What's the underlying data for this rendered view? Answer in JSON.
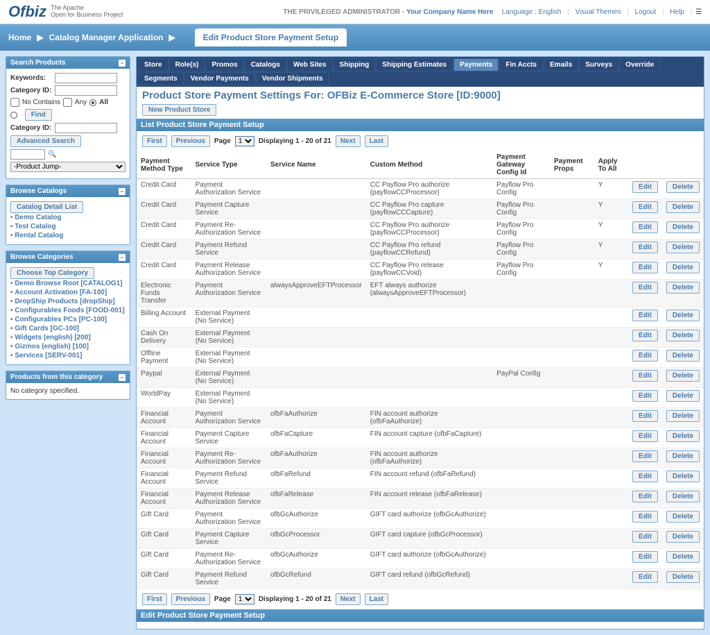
{
  "header": {
    "logo_name": "Ofbiz",
    "logo_sub1": "The Apache",
    "logo_sub2": "Open for Business Project",
    "admin_label": "THE PRIVILEGED ADMINISTRATOR",
    "company": "Your Company Name Here",
    "language_label": "Language :",
    "language_value": "English",
    "themes": "Visual Themes",
    "logout": "Logout",
    "help": "Help"
  },
  "breadcrumb": {
    "home": "Home",
    "app": "Catalog Manager Application",
    "page": "Edit Product Store Payment Setup"
  },
  "tabs": [
    "Store",
    "Role(s)",
    "Promos",
    "Catalogs",
    "Web Sites",
    "Shipping",
    "Shipping Estimates",
    "Payments",
    "Fin Accts",
    "Emails",
    "Surveys",
    "Override",
    "Segments",
    "Vendor Payments",
    "Vendor Shipments"
  ],
  "tabs_active": "Payments",
  "page_title": "Product Store Payment Settings For: OFBiz E-Commerce Store [ID:9000]",
  "new_btn": "New Product Store",
  "section_list": "List Product Store Payment Setup",
  "section_edit": "Edit Product Store Payment Setup",
  "search": {
    "title": "Search Products",
    "keywords": "Keywords:",
    "category": "Category ID:",
    "no_contains": "No Contains",
    "any": "Any",
    "all": "All",
    "find": "Find",
    "adv": "Advanced Search",
    "jump": "-Product Jump-"
  },
  "browse_catalogs": {
    "title": "Browse Catalogs",
    "detail": "Catalog Detail List",
    "items": [
      "Demo Catalog",
      "Test Catalog",
      "Rental Catalog"
    ]
  },
  "browse_categories": {
    "title": "Browse Categories",
    "top": "Choose Top Category",
    "items": [
      "Demo Browse Root [CATALOG1]",
      "Account Activation [FA-100]",
      "DropShip Products [dropShip]",
      "Configurables Foods [FOOD-001]",
      "Configurables PCs [PC-100]",
      "Gift Cards [GC-100]",
      "Widgets (english) [200]",
      "Gizmos (english) [100]",
      "Services [SERV-001]"
    ]
  },
  "prod_cat": {
    "title": "Products from this category",
    "empty": "No category specified."
  },
  "pager": {
    "first": "First",
    "prev": "Previous",
    "page_label": "Page",
    "page_val": "1",
    "display": "Displaying 1 - 20 of 21",
    "next": "Next",
    "last": "Last"
  },
  "cols": [
    "Payment Method Type",
    "Service Type",
    "Service Name",
    "Custom Method",
    "Payment Gateway Config Id",
    "Payment Props",
    "Apply To All",
    "",
    ""
  ],
  "edit_label": "Edit",
  "delete_label": "Delete",
  "rows": [
    [
      "Credit Card",
      "Payment Authorization Service",
      "",
      "CC Payflow Pro authorize (payflowCCProcessor)",
      "Payflow Pro Config",
      "",
      "Y"
    ],
    [
      "Credit Card",
      "Payment Capture Service",
      "",
      "CC Payflow Pro capture (payflowCCCapture)",
      "Payflow Pro Config",
      "",
      "Y"
    ],
    [
      "Credit Card",
      "Payment Re-Authorization Service",
      "",
      "CC Payflow Pro authorize (payflowCCProcessor)",
      "Payflow Pro Config",
      "",
      "Y"
    ],
    [
      "Credit Card",
      "Payment Refund Service",
      "",
      "CC Payflow Pro refund (payflowCCRefund)",
      "Payflow Pro Config",
      "",
      "Y"
    ],
    [
      "Credit Card",
      "Payment Release Authorization Service",
      "",
      "CC Payflow Pro release (payflowCCVoid)",
      "Payflow Pro Config",
      "",
      "Y"
    ],
    [
      "Electronic Funds Transfer",
      "Payment Authorization Service",
      "alwaysApproveEFTProcessor",
      "EFT always authorize (alwaysApproveEFTProcessor)",
      "",
      "",
      ""
    ],
    [
      "Billing Account",
      "External Payment (No Service)",
      "",
      "",
      "",
      "",
      ""
    ],
    [
      "Cash On Delivery",
      "External Payment (No Service)",
      "",
      "",
      "",
      "",
      ""
    ],
    [
      "Offline Payment",
      "External Payment (No Service)",
      "",
      "",
      "",
      "",
      ""
    ],
    [
      "Paypal",
      "External Payment (No Service)",
      "",
      "",
      "PayPal Config",
      "",
      ""
    ],
    [
      "WorldPay",
      "External Payment (No Service)",
      "",
      "",
      "",
      "",
      ""
    ],
    [
      "Financial Account",
      "Payment Authorization Service",
      "ofbFaAuthorize",
      "FIN account authorize (ofbFaAuthorize)",
      "",
      "",
      ""
    ],
    [
      "Financial Account",
      "Payment Capture Service",
      "ofbFaCapture",
      "FIN account capture (ofbFaCapture)",
      "",
      "",
      ""
    ],
    [
      "Financial Account",
      "Payment Re-Authorization Service",
      "ofbFaAuthorize",
      "FIN account authorize (ofbFaAuthorize)",
      "",
      "",
      ""
    ],
    [
      "Financial Account",
      "Payment Refund Service",
      "ofbFaRefund",
      "FIN account refund (ofbFaRefund)",
      "",
      "",
      ""
    ],
    [
      "Financial Account",
      "Payment Release Authorization Service",
      "ofbFaRelease",
      "FIN account release (ofbFaRelease)",
      "",
      "",
      ""
    ],
    [
      "Gift Card",
      "Payment Authorization Service",
      "ofbGcAuthorize",
      "GIFT card authorize (ofbGcAuthorize)",
      "",
      "",
      ""
    ],
    [
      "Gift Card",
      "Payment Capture Service",
      "ofbGcProcessor",
      "GIFT card capture (ofbGcProcessor)",
      "",
      "",
      ""
    ],
    [
      "Gift Card",
      "Payment Re-Authorization Service",
      "ofbGcAuthorize",
      "GIFT card authorize (ofbGcAuthorize)",
      "",
      "",
      ""
    ],
    [
      "Gift Card",
      "Payment Refund Service",
      "ofbGcRefund",
      "GIFT card refund (ofbGcRefund)",
      "",
      "",
      ""
    ]
  ]
}
